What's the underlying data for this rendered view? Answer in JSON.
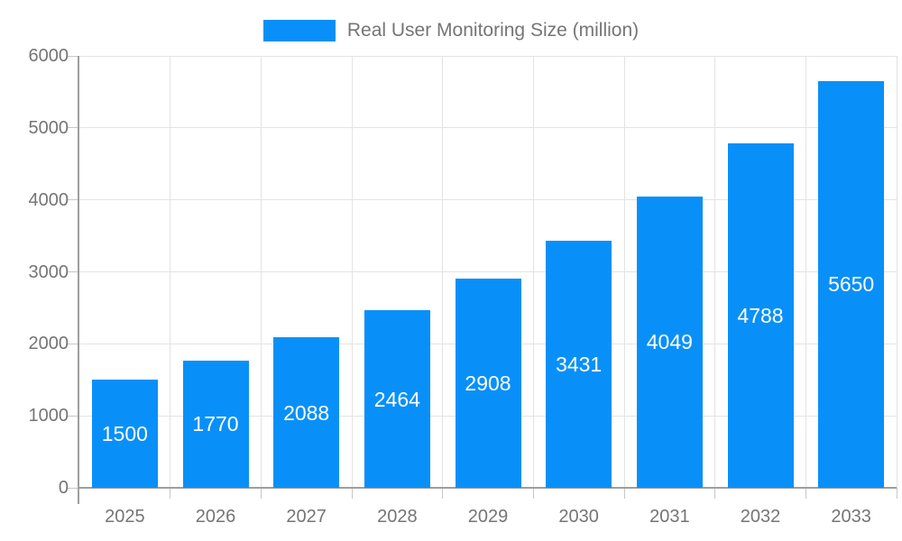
{
  "legend": {
    "label": "Real User Monitoring Size (million)"
  },
  "chart_data": {
    "type": "bar",
    "title": "Real User Monitoring Size (million)",
    "categories": [
      "2025",
      "2026",
      "2027",
      "2028",
      "2029",
      "2030",
      "2031",
      "2032",
      "2033"
    ],
    "values": [
      1500,
      1770,
      2088,
      2464,
      2908,
      3431,
      4049,
      4788,
      5650
    ],
    "xlabel": "",
    "ylabel": "",
    "ylim": [
      0,
      6000
    ],
    "yticks": [
      0,
      1000,
      2000,
      3000,
      4000,
      5000,
      6000
    ],
    "grid": true,
    "legend_position": "top",
    "colors": {
      "bar": "#0990f8",
      "bar_label": "#ffffff",
      "axis_text": "#757575",
      "axis_line": "#9e9e9e",
      "gridline": "#e3e3e3",
      "tick": "#c7c7c7",
      "background": "#ffffff"
    }
  }
}
